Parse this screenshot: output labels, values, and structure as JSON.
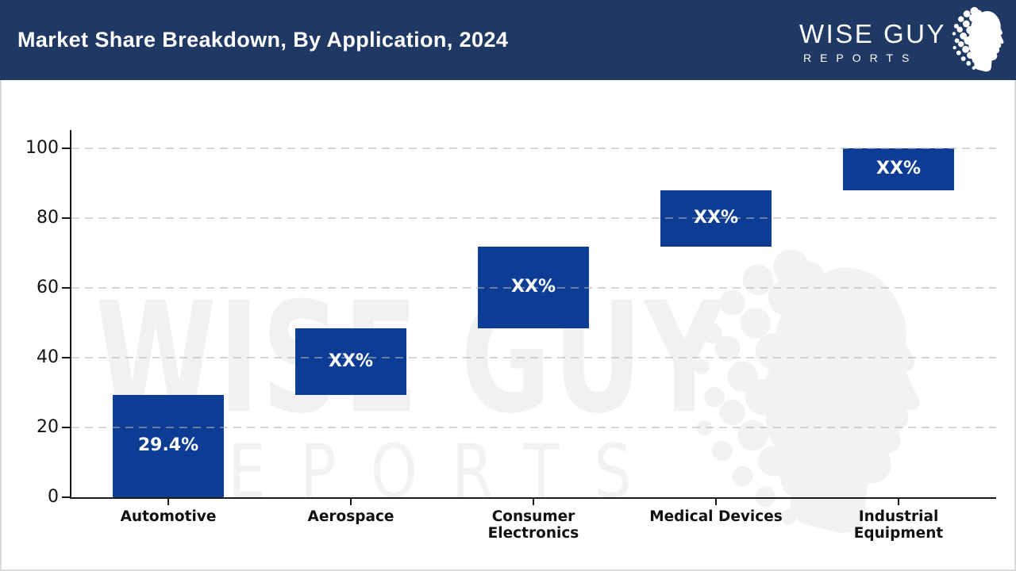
{
  "header": {
    "title": "Market Share Breakdown, By Application, 2024",
    "brand": {
      "name": "WISE GUY",
      "subtitle": "REPORTS",
      "face_icon": "dotted-head-profile-icon"
    }
  },
  "watermark": {
    "line1": "WISE GUY",
    "line2": "REPORTS",
    "face_icon": "dotted-head-profile-icon"
  },
  "colors": {
    "header_bg": "#1f3864",
    "header_text": "#ffffff",
    "bar": "#0c3c94",
    "bar_label": "#ffffff",
    "axis": "#1a1a1a",
    "tick_label": "#111111",
    "grid": "#bbbbbb",
    "watermark": "#f1f1f1",
    "page_border": "#d9d9d9",
    "background": "#ffffff"
  },
  "chart_data": {
    "type": "bar",
    "subtype": "waterfall",
    "title": "Market Share Breakdown, By Application, 2024",
    "categories": [
      "Automotive",
      "Aerospace",
      "Consumer Electronics",
      "Medical Devices",
      "Industrial Equipment"
    ],
    "bars": [
      {
        "category": "Automotive",
        "label": "29.4%",
        "start": 0,
        "end": 29.4
      },
      {
        "category": "Aerospace",
        "label": "XX%",
        "start": 29.4,
        "end": 48.4
      },
      {
        "category": "Consumer Electronics",
        "label": "XX%",
        "start": 48.4,
        "end": 71.8
      },
      {
        "category": "Medical Devices",
        "label": "XX%",
        "start": 71.8,
        "end": 87.9
      },
      {
        "category": "Industrial Equipment",
        "label": "XX%",
        "start": 87.9,
        "end": 100
      }
    ],
    "xlabel": "",
    "ylabel": "",
    "yticks": [
      0,
      20,
      40,
      60,
      80,
      100
    ],
    "ylim": [
      0,
      105
    ],
    "grid": "horizontal-dashed-over-bars",
    "legend": "none"
  }
}
